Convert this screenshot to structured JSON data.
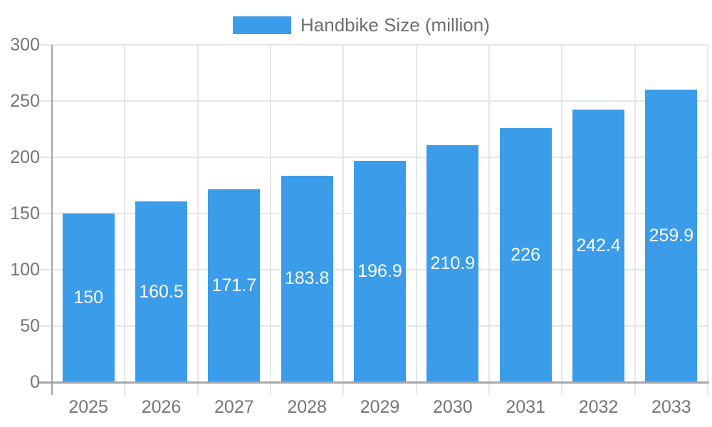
{
  "legend": {
    "label": "Handbike Size (million)"
  },
  "colors": {
    "bar": "#3b9cea",
    "grid_line": "#e6e6e6",
    "axis_line": "#a6a6a6",
    "tick_text": "#757575",
    "legend_text": "#6e6e6e",
    "value_label_text": "#ffffff",
    "background": "#ffffff"
  },
  "chart_data": {
    "type": "bar",
    "title": "",
    "xlabel": "",
    "ylabel": "",
    "categories": [
      "2025",
      "2026",
      "2027",
      "2028",
      "2029",
      "2030",
      "2031",
      "2032",
      "2033"
    ],
    "series": [
      {
        "name": "Handbike Size (million)",
        "values": [
          150,
          160.5,
          171.7,
          183.8,
          196.9,
          210.9,
          226,
          242.4,
          259.9
        ]
      }
    ],
    "value_labels": [
      "150",
      "160.5",
      "171.7",
      "183.8",
      "196.9",
      "210.9",
      "226",
      "242.4",
      "259.9"
    ],
    "value_label_position": "inside-center",
    "ylim": [
      0,
      300
    ],
    "yticks": [
      0,
      50,
      100,
      150,
      200,
      250,
      300
    ],
    "grid": true,
    "legend_position": "top-center"
  }
}
